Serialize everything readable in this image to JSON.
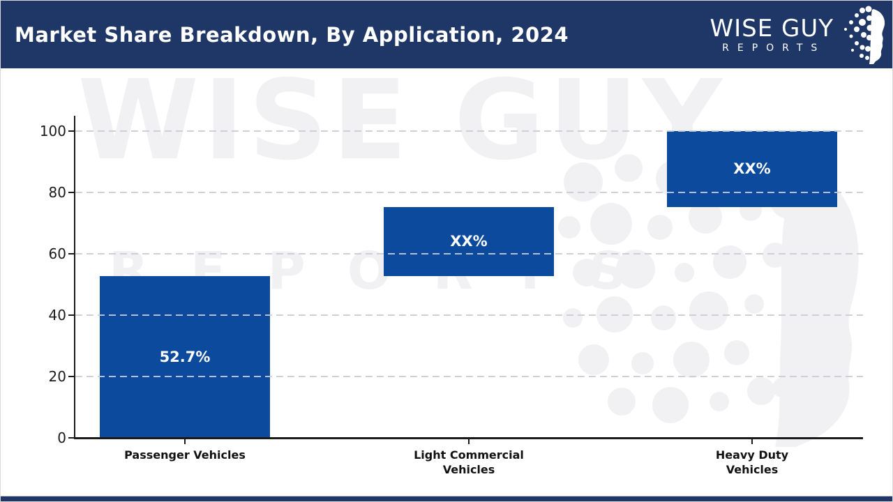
{
  "header": {
    "title": "Market Share Breakdown, By Application, 2024",
    "logo": {
      "name_line": "WISE GUY",
      "sub_line": "REPORTS"
    }
  },
  "watermark": {
    "line1": "WISE GUY",
    "line2": "REPORTS"
  },
  "chart_data": {
    "type": "bar",
    "variant": "stepped floating segment bars (market share breakdown)",
    "title": "Market Share Breakdown, By Application, 2024",
    "categories": [
      "Passenger Vehicles",
      "Light Commercial Vehicles",
      "Heavy Duty Vehicles"
    ],
    "category_label_lines": [
      [
        "Passenger Vehicles"
      ],
      [
        "Light Commercial",
        "Vehicles"
      ],
      [
        "Heavy Duty",
        "Vehicles"
      ]
    ],
    "segments": [
      {
        "category": "Passenger Vehicles",
        "from": 0,
        "to": 52.7,
        "label": "52.7%"
      },
      {
        "category": "Light Commercial Vehicles",
        "from": 52.7,
        "to": 75.3,
        "label": "XX%"
      },
      {
        "category": "Heavy Duty Vehicles",
        "from": 75.3,
        "to": 100,
        "label": "XX%"
      }
    ],
    "y_ticks": [
      0,
      20,
      40,
      60,
      80,
      100
    ],
    "ylim": [
      0,
      100
    ],
    "grid": "dashed-horizontal, drawn over bars",
    "legend": "none",
    "bar_color": "#0c4a9e"
  },
  "colors": {
    "header_bg": "#1e3766",
    "footer_bg": "#1e3766",
    "bar": "#0c4a9e",
    "bar_label_text": "#ffffff",
    "axis": "#1a1a1a",
    "gridline": "#cbd0d7",
    "watermark": "#f1f1f4",
    "background": "#ffffff"
  }
}
